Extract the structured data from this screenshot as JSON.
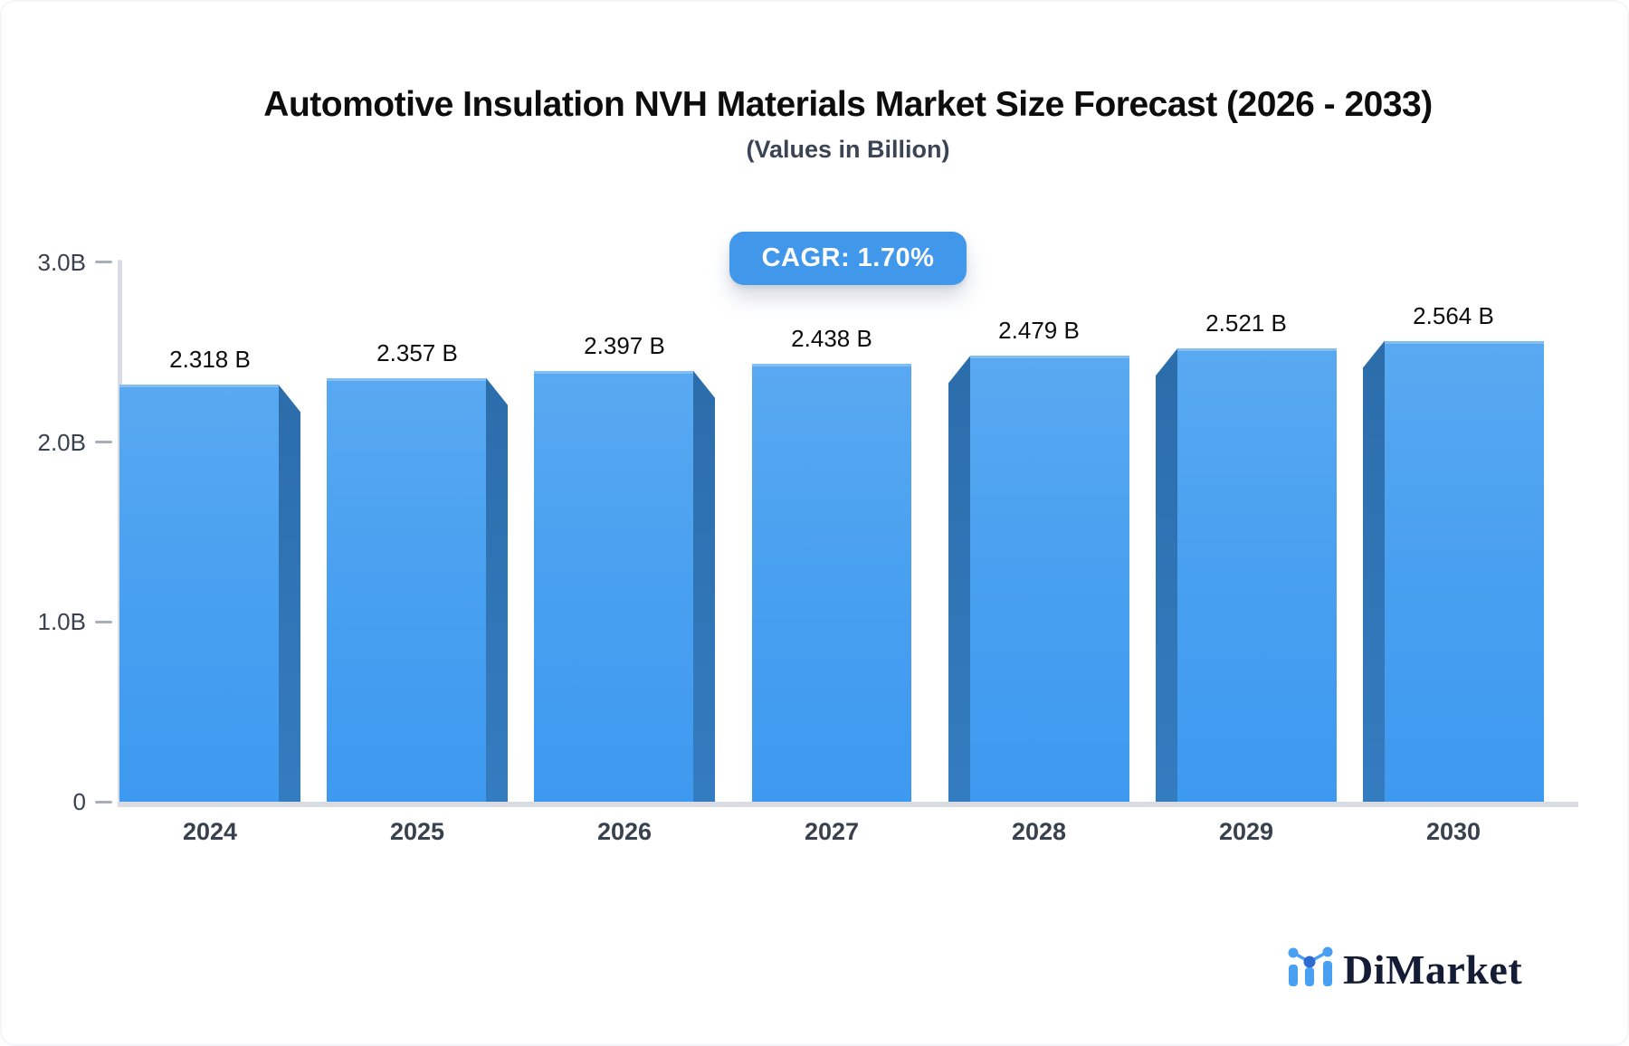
{
  "header": {
    "title": "Automotive Insulation NVH Materials Market Size Forecast (2026 - 2033)",
    "subtitle": "(Values in Billion)"
  },
  "badge": {
    "label": "CAGR: 1.70%"
  },
  "chart_data": {
    "type": "bar",
    "title": "Automotive Insulation NVH Materials Market Size Forecast (2026 - 2033)",
    "subtitle": "(Values in Billion)",
    "unit": "Billion",
    "categories": [
      "2024",
      "2025",
      "2026",
      "2027",
      "2028",
      "2029",
      "2030"
    ],
    "values": [
      2.318,
      2.357,
      2.397,
      2.438,
      2.479,
      2.521,
      2.564
    ],
    "bar_labels": [
      "2.318 B",
      "2.357 B",
      "2.397 B",
      "2.438 B",
      "2.479 B",
      "2.521 B",
      "2.564 B"
    ],
    "ylim": [
      0,
      3.0
    ],
    "yticks": [
      {
        "label": "3.0B",
        "value": 3.0
      },
      {
        "label": "2.0B",
        "value": 2.0
      },
      {
        "label": "1.0B",
        "value": 1.0
      },
      {
        "label": "0",
        "value": 0
      }
    ],
    "grid": false,
    "legend": "none",
    "colors": {
      "bar_face_top": "#58a9f1",
      "bar_face_bottom": "#3e99f0",
      "bar_side": "#2f73b5",
      "axis": "#d9dce2",
      "tick_text": "#39414e",
      "value_text": "#0d0d0d",
      "badge_bg": "#4197ea",
      "badge_text": "#ffffff"
    }
  },
  "logo": {
    "text": "DiMarket",
    "icon": "bar-chart-with-trend-dots-icon",
    "icon_color": "#49a0f3",
    "accent_dot_color": "#2e6bd0",
    "text_color": "#151c36"
  }
}
